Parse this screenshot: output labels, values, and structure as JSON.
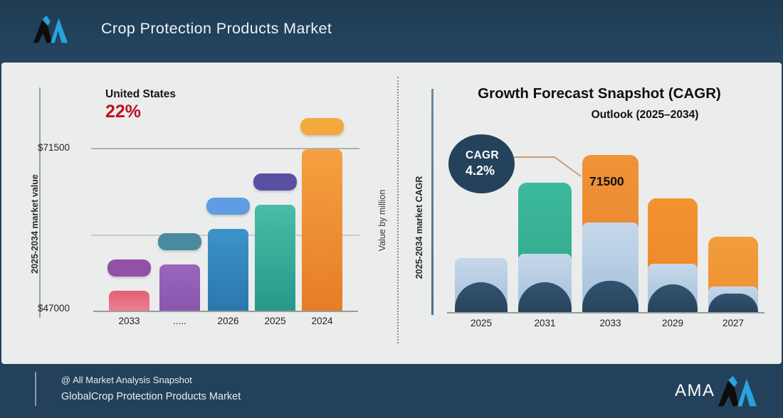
{
  "header": {
    "title": "Crop Protection Products Market",
    "logo": "ama-mountain-logo"
  },
  "footer": {
    "line1": "@ All Market Analysis Snapshot",
    "line2": "GlobalCrop Protection Products Market",
    "brand": "AMA",
    "logo": "ama-mountain-logo"
  },
  "colors": {
    "header_bg": "#23415a",
    "panel_bg": "#ebecec",
    "accent_red": "#bf1120",
    "badge_navy": "#24425c",
    "divider_dots": "#a08a7a",
    "connector_tan": "#c99c74",
    "logo_blue": "#29a3dd",
    "logo_black": "#0d0d0d"
  },
  "chart_data": [
    {
      "type": "bar",
      "title": "United States",
      "highlight": "22%",
      "ylabel": "2025-2034 market value",
      "ylabel_right": "Value by million",
      "categories": [
        "2033",
        ".....",
        "2026",
        "2025",
        "2024"
      ],
      "values": [
        50000,
        54000,
        59400,
        63000,
        71400
      ],
      "ylim": [
        47000,
        73000
      ],
      "yticks": [
        {
          "label": "$47000",
          "value": 47000
        },
        {
          "label": "$71500",
          "value": 71500
        }
      ],
      "grid": "horizontal gridlines at 71500 and ~59300, baseline at 47000",
      "legend": "none",
      "bar_colors": [
        [
          "#e25f78",
          "#ee7e90"
        ],
        [
          "#9a66bd",
          "#8a55ad"
        ],
        [
          "#3d93c9",
          "#2a77ad"
        ],
        [
          "#49bda7",
          "#27988a"
        ],
        [
          "#f5a041",
          "#e67d27"
        ]
      ],
      "cap_colors": [
        "#9051a7",
        "#4a8aa0",
        "#5f9de2",
        "#5a50a2",
        "#f3a93c"
      ],
      "caps_note": "floating rounded cap above each bar, decorative"
    },
    {
      "type": "stacked-bar",
      "title": "Growth Forecast Snapshot (CAGR)",
      "subtitle": "Outlook (2025–2034)",
      "ylabel": "2025-2034 market CAGR",
      "badge": {
        "line1": "CAGR",
        "line2": "4.2%"
      },
      "annotation": {
        "text": "71500",
        "category": "2033"
      },
      "categories": [
        "2025",
        "2031",
        "2033",
        "2029",
        "2027"
      ],
      "units": "relative height units (px)",
      "series": [
        {
          "name": "base-mound",
          "color_top": "#33536f",
          "color_bottom": "#27445d",
          "values": [
            42,
            42,
            44,
            39,
            26
          ]
        },
        {
          "name": "mid-band",
          "color_top": "#c6d8ea",
          "color_bottom": "#a2bfd9",
          "values": [
            34,
            40,
            82,
            29,
            10
          ]
        },
        {
          "name": "top-band",
          "values": [
            0,
            100,
            95,
            92,
            70
          ],
          "colors_top": [
            null,
            "#3cb99b",
            "#f09238",
            "#f29330",
            "#f29d3c"
          ],
          "colors_bottom": [
            null,
            "#2ea48a",
            "#e8842c",
            "#ec8527",
            "#ee8f31"
          ]
        }
      ],
      "legend": "none",
      "grid": "off"
    }
  ]
}
